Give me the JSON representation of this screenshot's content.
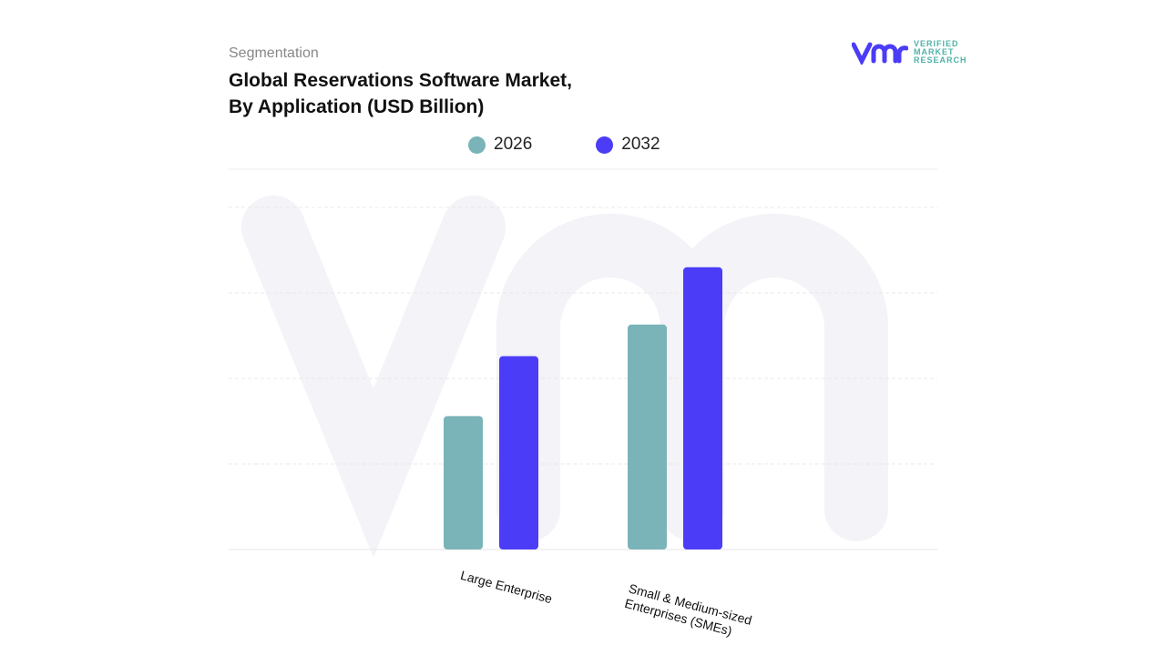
{
  "header": {
    "segment_label": "Segmentation",
    "title_line1": "Global Reservations Software Market,",
    "title_line2": "By Application (USD Billion)"
  },
  "logo": {
    "text_lines": [
      "VERIFIED",
      "MARKET",
      "RESEARCH"
    ],
    "watermark": "vmr"
  },
  "chart_data": {
    "type": "bar",
    "title": "Global Reservations Software Market, By Application (USD Billion)",
    "categories": [
      "Large Enterprise",
      "Small & Medium-sized Enterprises (SMEs)"
    ],
    "series": [
      {
        "name": "2026",
        "color": "#7ab3b8",
        "values": [
          1.56,
          2.63
        ]
      },
      {
        "name": "2032",
        "color": "#4b3cf7",
        "values": [
          2.26,
          3.3
        ]
      }
    ],
    "ylim": [
      0,
      4
    ],
    "grid": true,
    "legend_position": "top-center",
    "y_tick_labels_shown": false
  }
}
